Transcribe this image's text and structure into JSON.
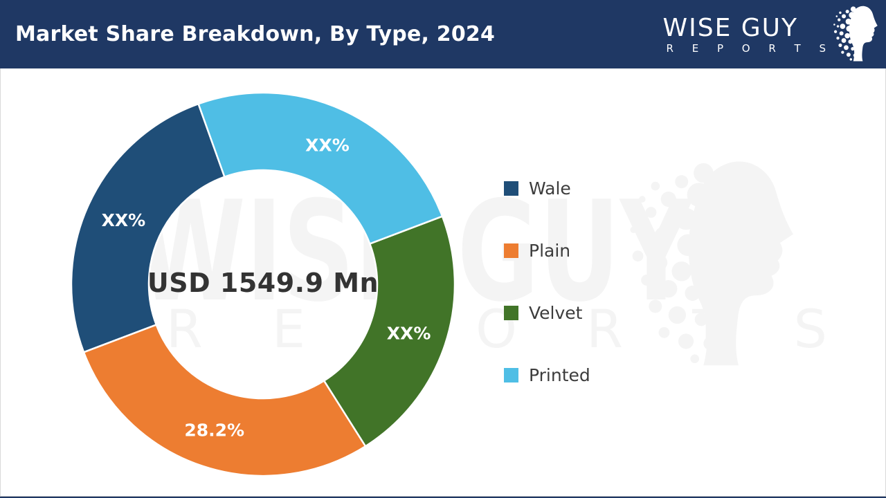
{
  "header": {
    "title": "Market Share Breakdown, By Type, 2024",
    "background_color": "#1F3864",
    "logo": {
      "line1": "WISE GUY",
      "line2": "R E P O R T S",
      "face_icon": "dotted-head-profile"
    }
  },
  "watermark": {
    "line1": "WISE GUY",
    "line2": "R E P O R T S",
    "color": "#f4f4f4"
  },
  "chart_data": {
    "type": "donut",
    "title": "Market Share Breakdown, By Type, 2024",
    "center_label": "USD 1549.9 Mn",
    "values_unit": "percent",
    "rotation_deg_clockwise_from_top": 340.3,
    "inner_radius_ratio": 0.6,
    "legend_position": "right",
    "segments": [
      {
        "name": "Wale",
        "value": 25.3,
        "display_label": "XX%",
        "color": "#1F4E78"
      },
      {
        "name": "Plain",
        "value": 28.2,
        "display_label": "28.2%",
        "color": "#ED7D31"
      },
      {
        "name": "Velvet",
        "value": 21.8,
        "display_label": "XX%",
        "color": "#417428"
      },
      {
        "name": "Printed",
        "value": 24.7,
        "display_label": "XX%",
        "color": "#4FBEE5"
      }
    ]
  }
}
